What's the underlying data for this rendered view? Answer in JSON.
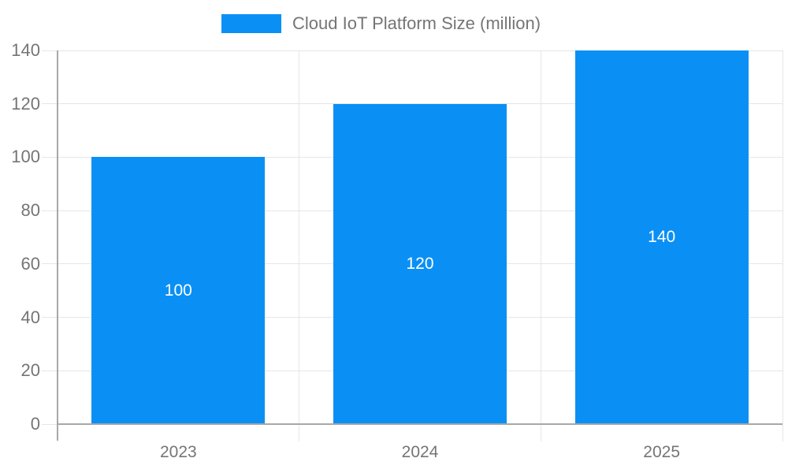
{
  "chart_data": {
    "type": "bar",
    "title": "Cloud IoT Platform Size (million)",
    "legend": {
      "label": "Cloud IoT Platform Size (million)",
      "position": "top"
    },
    "categories": [
      "2023",
      "2024",
      "2025"
    ],
    "values": [
      100,
      120,
      140
    ],
    "value_labels": [
      "100",
      "120",
      "140"
    ],
    "xlabel": "",
    "ylabel": "",
    "ylim": [
      0,
      140
    ],
    "yticks": [
      0,
      20,
      40,
      60,
      80,
      100,
      120,
      140
    ],
    "grid": true,
    "colors": {
      "bar": "#0a90f5",
      "value_label": "#ffffff",
      "axis_text": "#757575",
      "gridline": "#e6e6e6",
      "axis_line": "#a8a8a8",
      "background": "#ffffff"
    }
  }
}
